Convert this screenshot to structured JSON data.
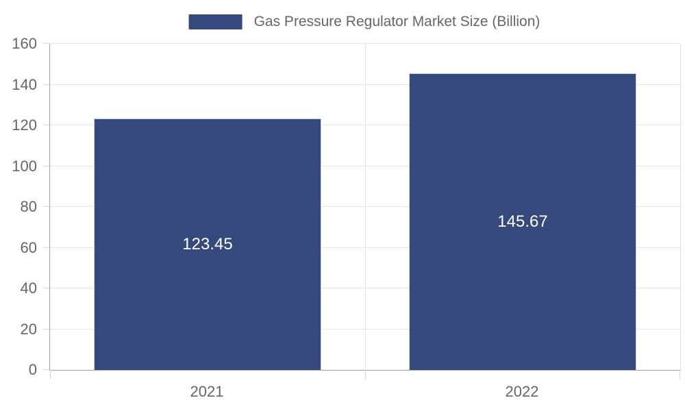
{
  "chart_data": {
    "type": "bar",
    "title": "",
    "legend": "Gas Pressure Regulator Market Size (Billion)",
    "categories": [
      "2021",
      "2022"
    ],
    "values": [
      123.45,
      145.67
    ],
    "value_labels": [
      "123.45",
      "145.67"
    ],
    "xlabel": "",
    "ylabel": "",
    "ylim": [
      0,
      160
    ],
    "yticks": [
      0,
      20,
      40,
      60,
      80,
      100,
      120,
      140,
      160
    ],
    "grid": true,
    "legend_position": "top-center",
    "colors": {
      "bar": "#36497C",
      "bar_border": "#cdd3e2",
      "data_label": "#ffffff",
      "grid": "#e6e6e6",
      "axis_line": "#a0a0a0",
      "x_tick": "#ccd6eb",
      "y_tick": "#d9d9d9",
      "label_text": "#666666",
      "background": "#ffffff"
    }
  }
}
